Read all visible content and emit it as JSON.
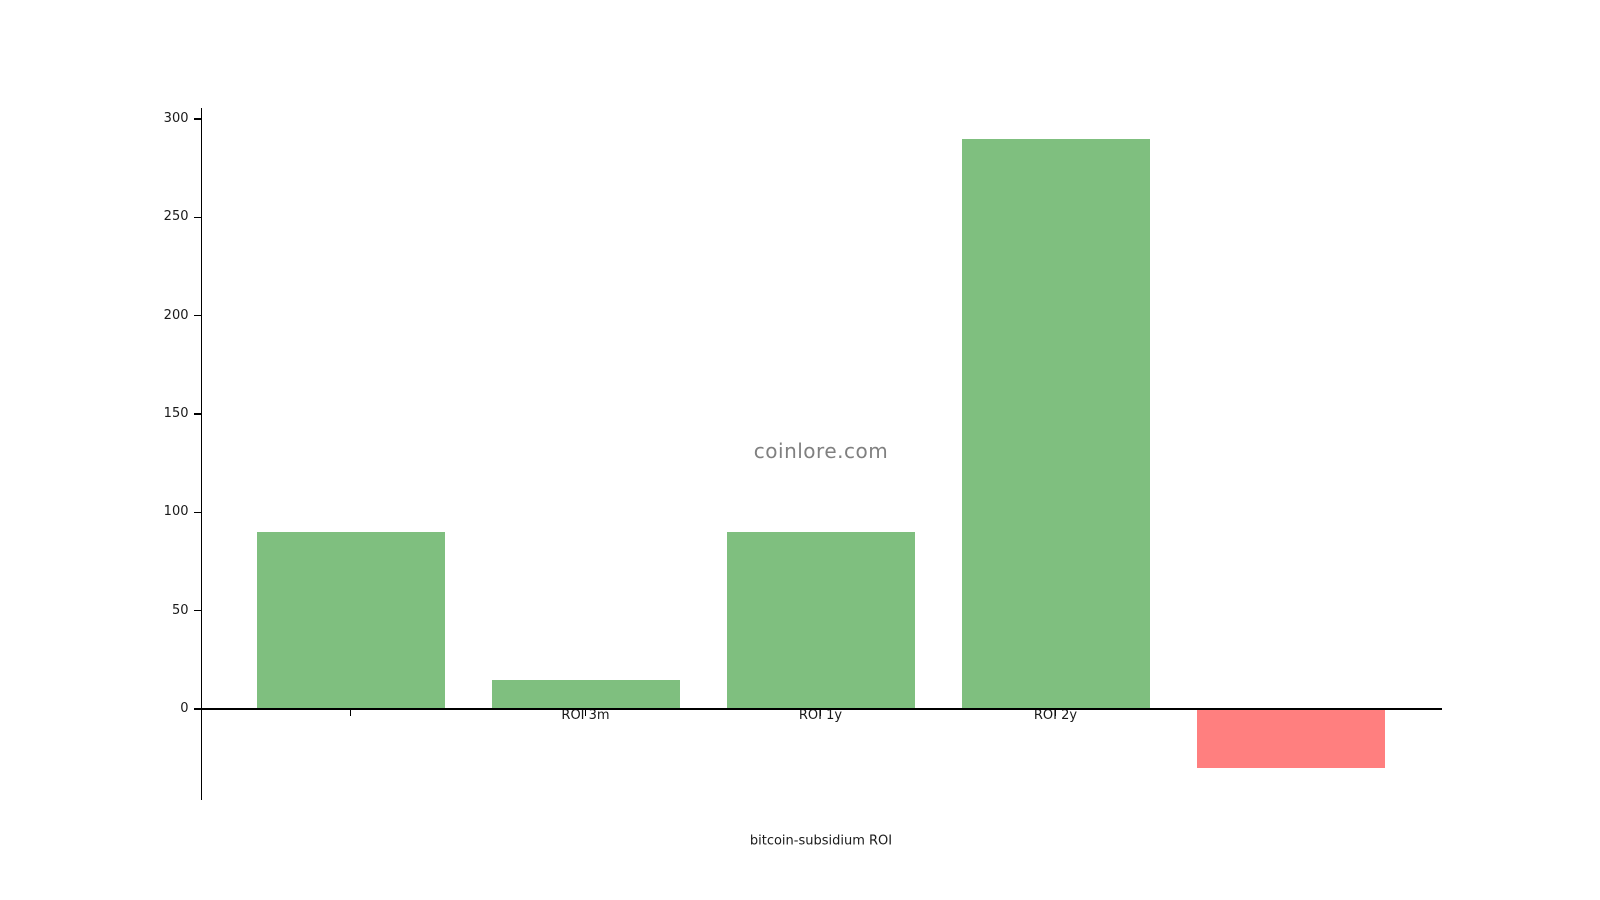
{
  "chart_data": {
    "type": "bar",
    "title": "",
    "xlabel": "bitcoin-subsidium ROI",
    "ylabel": "",
    "categories": [
      "",
      "ROI 3m",
      "ROI 1y",
      "ROI 2y",
      ""
    ],
    "values": [
      90,
      15,
      90,
      290,
      -30
    ],
    "bar_colors": [
      "#7fbf7f",
      "#7fbf7f",
      "#7fbf7f",
      "#7fbf7f",
      "#ff7f7f"
    ],
    "yticks": [
      0,
      50,
      100,
      150,
      200,
      250,
      300
    ],
    "ylim": [
      -46,
      306
    ],
    "grid": false,
    "legend": null,
    "watermark": "coinlore.com",
    "colors": {
      "positive_bar": "#7fbf7f",
      "negative_bar": "#ff7f7f",
      "axis": "#000000",
      "tick_label": "#1a1a1a",
      "watermark": "#808080"
    }
  }
}
